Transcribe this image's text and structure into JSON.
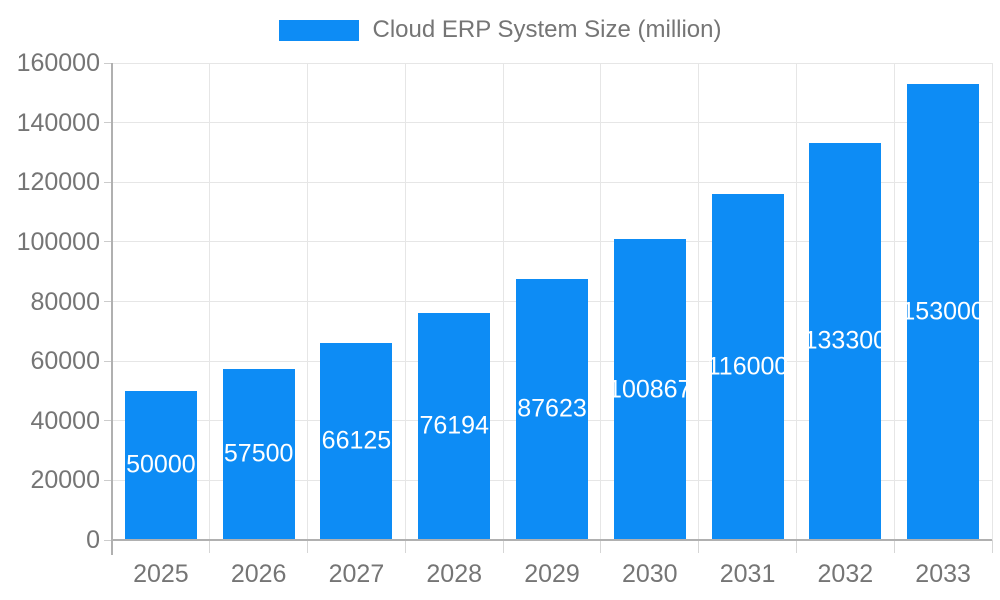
{
  "chart_data": {
    "type": "bar",
    "title": "Cloud ERP System Size (million)",
    "legend": [
      "Cloud ERP System Size (million)"
    ],
    "legend_position": "top-center",
    "categories": [
      "2025",
      "2026",
      "2027",
      "2028",
      "2029",
      "2030",
      "2031",
      "2032",
      "2033"
    ],
    "series": [
      {
        "name": "Cloud ERP System Size (million)",
        "values": [
          50000,
          57500,
          66125,
          76194,
          87623,
          100867,
          116000,
          133300,
          153000
        ]
      }
    ],
    "data_labels_visible": true,
    "xlabel": "",
    "ylabel": "",
    "ylim": [
      0,
      160000
    ],
    "y_ticks": [
      0,
      20000,
      40000,
      60000,
      80000,
      100000,
      120000,
      140000,
      160000
    ],
    "grid": true,
    "colors": {
      "bar": "#0d8cf5",
      "bar_value_label": "#ffffff",
      "axis_text": "#757575",
      "grid_line": "#e6e6e6",
      "axis_line": "#b0b0b0"
    }
  }
}
